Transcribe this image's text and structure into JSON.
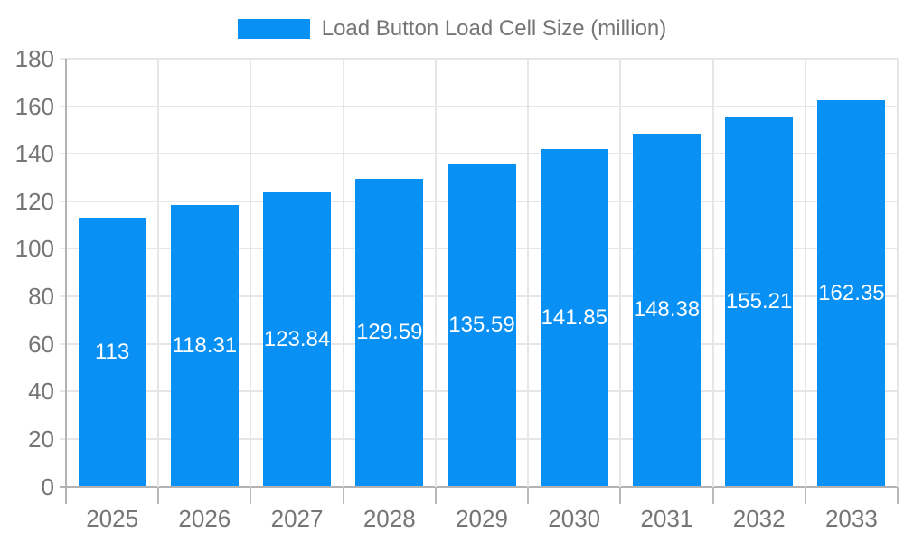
{
  "chart_data": {
    "type": "bar",
    "title": "Load Button Load Cell Size (million)",
    "categories": [
      "2025",
      "2026",
      "2027",
      "2028",
      "2029",
      "2030",
      "2031",
      "2032",
      "2033"
    ],
    "series": [
      {
        "name": "Load Button Load Cell Size (million)",
        "values": [
          113,
          118.31,
          123.84,
          129.59,
          135.59,
          141.85,
          148.38,
          155.21,
          162.35
        ]
      }
    ],
    "value_labels": [
      "113",
      "118.31",
      "123.84",
      "129.59",
      "135.59",
      "141.85",
      "148.38",
      "155.21",
      "162.35"
    ],
    "xlabel": "",
    "ylabel": "",
    "ylim": [
      0,
      180
    ],
    "ytick_step": 20,
    "ytick_labels": [
      "0",
      "20",
      "40",
      "60",
      "80",
      "100",
      "120",
      "140",
      "160",
      "180"
    ],
    "grid": true,
    "legend_position": "top",
    "colors": {
      "bar": "#0890f4",
      "axis": "#b3b3b3",
      "gridline": "#e6e6e6",
      "tick_label": "#757575",
      "value_label": "#ffffff",
      "background": "#ffffff"
    }
  }
}
